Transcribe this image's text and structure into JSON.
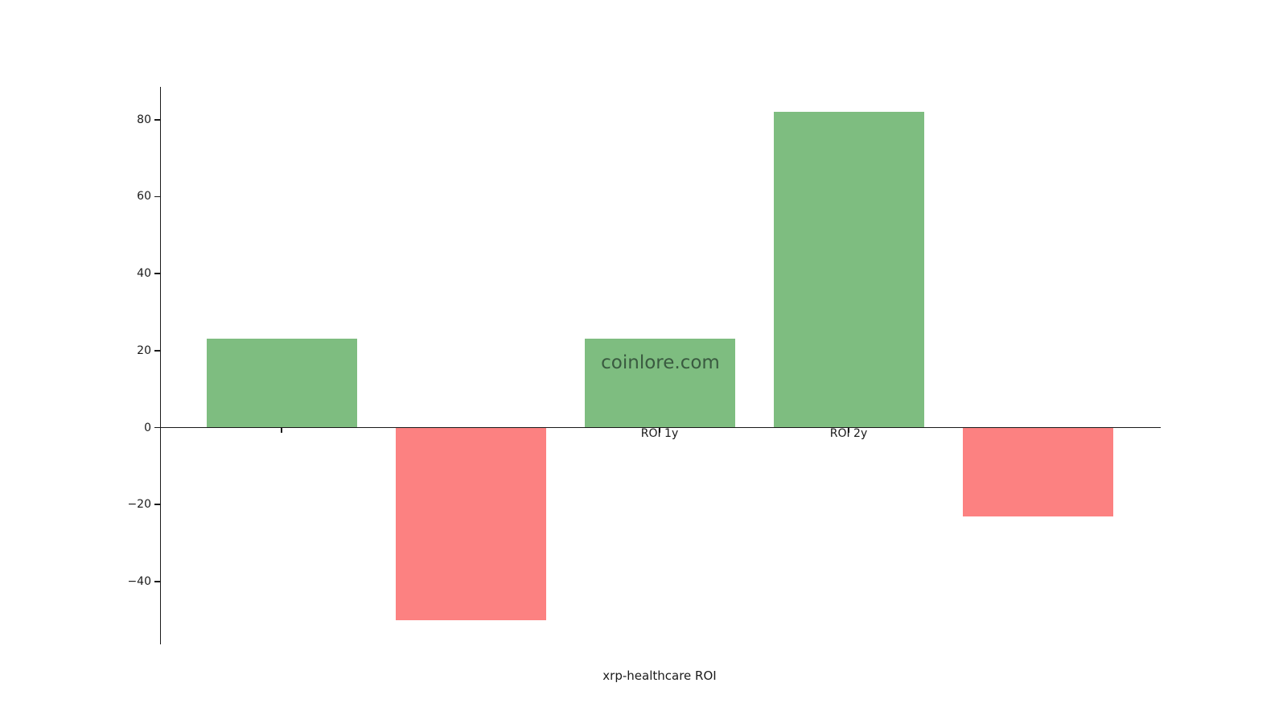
{
  "chart_data": {
    "type": "bar",
    "categories": [
      "",
      "",
      "ROI 1y",
      "ROI 2y",
      ""
    ],
    "values": [
      23,
      -50,
      23,
      82,
      -23
    ],
    "title": "",
    "xlabel": "xrp-healthcare ROI",
    "ylabel": "",
    "ylim": [
      -56,
      88.5
    ],
    "yticks": [
      80,
      60,
      40,
      20,
      0,
      -20,
      -40
    ],
    "grid": false,
    "legend": "none",
    "watermark": "coinlore.com",
    "colors": {
      "positive_bar": "#7ebd80",
      "negative_bar": "#fc8181",
      "axis": "#1a1a1a",
      "watermark_text": "#3a5a40"
    }
  }
}
